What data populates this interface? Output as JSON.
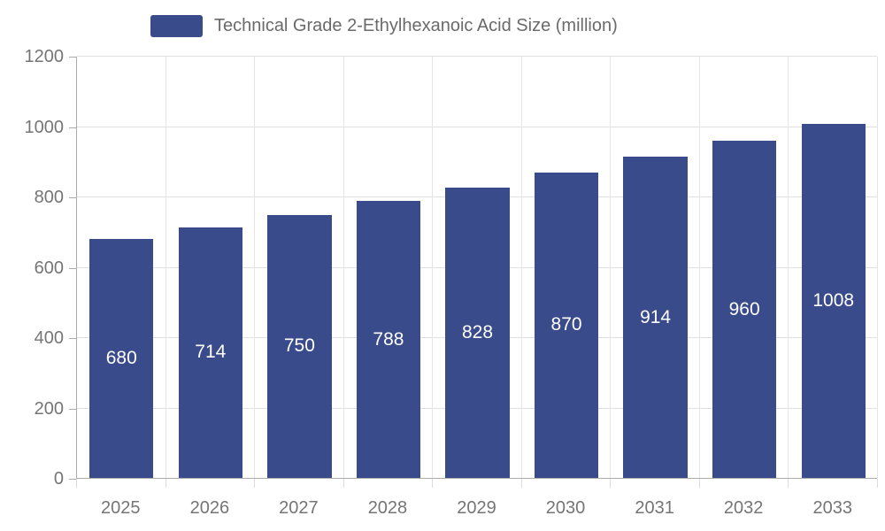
{
  "chart_data": {
    "type": "bar",
    "title": "Technical Grade 2-Ethylhexanoic Acid Size (million)",
    "legend_entries": [
      "Technical Grade 2-Ethylhexanoic Acid Size (million)"
    ],
    "legend_position": "top",
    "categories": [
      "2025",
      "2026",
      "2027",
      "2028",
      "2029",
      "2030",
      "2031",
      "2032",
      "2033"
    ],
    "values": [
      680,
      714,
      750,
      788,
      828,
      870,
      914,
      960,
      1008
    ],
    "xlabel": "",
    "ylabel": "",
    "ylim": [
      0,
      1200
    ],
    "yticks": [
      0,
      200,
      400,
      600,
      800,
      1000,
      1200
    ],
    "grid": true,
    "bar_labels_inside": true,
    "colors": {
      "bar": "#3A4B8C",
      "bar_label": "#FFFFFF",
      "axis_text": "#757575",
      "legend_text": "#6A6A6A",
      "hgridline": "#E0E0E0",
      "vgridline": "#E4E4E4",
      "axis_line": "#ABABAB",
      "x_tick": "#DADADA",
      "background": "#FFFFFF"
    }
  }
}
